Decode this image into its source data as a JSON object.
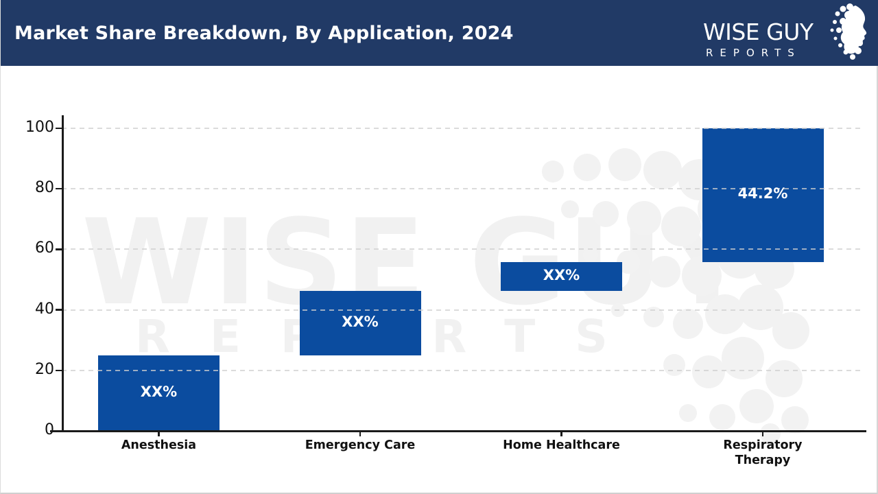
{
  "header": {
    "title": "Market Share Breakdown, By Application, 2024",
    "logo": {
      "brand": "WISE GUY",
      "sub": "REPORTS"
    }
  },
  "watermark": {
    "line1": "WISE GUY",
    "line2": "REPORTS"
  },
  "colors": {
    "header_bg": "#213a66",
    "bar": "#0b4c9f",
    "grid": "#cfcfcf",
    "axis": "#1a1a1a",
    "watermark": "#f1f1f1",
    "bar_label": "#ffffff"
  },
  "chart_data": {
    "type": "bar",
    "subtype": "waterfall",
    "title": "Market Share Breakdown, By Application, 2024",
    "categories": [
      "Anesthesia",
      "Emergency Care",
      "Home Healthcare",
      "Respiratory\nTherapy"
    ],
    "segments": [
      {
        "category": "Anesthesia",
        "start": 0,
        "end": 24.9,
        "value": 24.9,
        "label": "XX%"
      },
      {
        "category": "Emergency Care",
        "start": 24.9,
        "end": 46.3,
        "value": 21.4,
        "label": "XX%"
      },
      {
        "category": "Home Healthcare",
        "start": 46.3,
        "end": 55.8,
        "value": 9.5,
        "label": "XX%"
      },
      {
        "category": "Respiratory Therapy",
        "start": 55.8,
        "end": 100,
        "value": 44.2,
        "label": "44.2%"
      }
    ],
    "y_ticks": [
      0,
      20,
      40,
      60,
      80,
      100
    ],
    "ylim": [
      0,
      104
    ],
    "xlabel": "",
    "ylabel": "",
    "grid": "horizontal dashed, drawn over bars",
    "legend": "none",
    "bar_color": "#0b4c9f",
    "label_color": "#ffffff"
  }
}
